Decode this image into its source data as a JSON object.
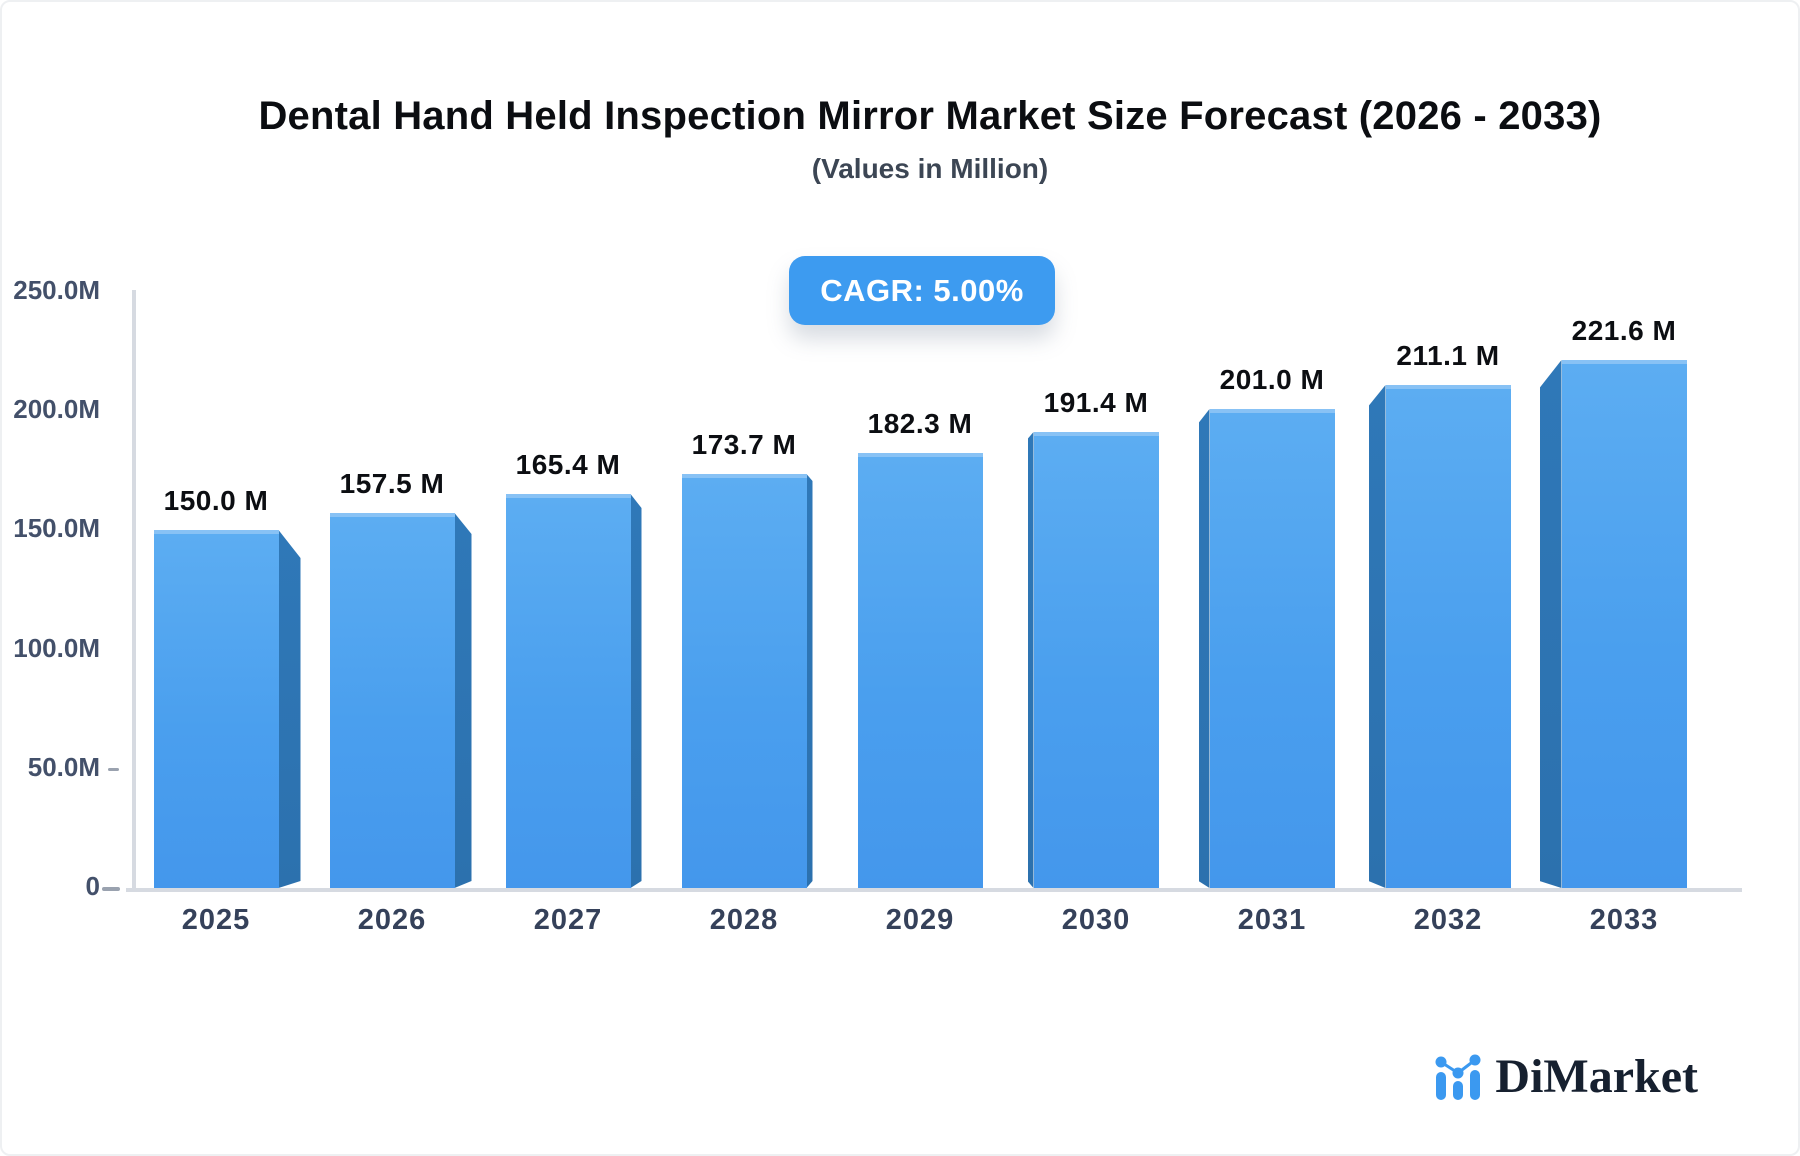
{
  "header": {
    "title": "Dental Hand Held Inspection Mirror Market Size Forecast (2026 - 2033)",
    "subtitle": "(Values in Million)"
  },
  "badge": {
    "label": "CAGR: 5.00%",
    "bg_color": "#3d9bf0",
    "text_color": "#ffffff"
  },
  "chart_data": {
    "type": "bar",
    "title": "Dental Hand Held Inspection Mirror Market Size Forecast (2026 - 2033)",
    "subtitle": "(Values in Million)",
    "categories": [
      "2025",
      "2026",
      "2027",
      "2028",
      "2029",
      "2030",
      "2031",
      "2032",
      "2033"
    ],
    "values": [
      150.0,
      157.5,
      165.4,
      173.7,
      182.3,
      191.4,
      201.0,
      211.1,
      221.6
    ],
    "bar_labels": [
      "150.0 M",
      "157.5 M",
      "165.4 M",
      "173.7 M",
      "182.3 M",
      "191.4 M",
      "201.0 M",
      "211.1 M",
      "221.6 M"
    ],
    "unit": "Million",
    "cagr": "5.00%",
    "ylim": [
      0,
      250
    ],
    "yticks": [
      {
        "value": 250,
        "label": "250.0M"
      },
      {
        "value": 200,
        "label": "200.0M"
      },
      {
        "value": 150,
        "label": "150.0M"
      },
      {
        "value": 100,
        "label": "100.0M"
      },
      {
        "value": 50,
        "label": "50.0M"
      },
      {
        "value": 0,
        "label": "0"
      }
    ],
    "grid": false,
    "legend": false,
    "bar_color_top": "#5cadf2",
    "bar_color_bottom": "#4497ec",
    "bar_side_color": "#2d74b2",
    "bar_cap_color": "#88c2f5",
    "axis_color": "#d6dae1",
    "label_color": "#0c0e12",
    "tick_color": "#43506a"
  },
  "logo": {
    "text": "DiMarket",
    "icon": "mini-bar-chart-icon",
    "icon_color": "#3b99f0",
    "text_color": "#16202f"
  }
}
